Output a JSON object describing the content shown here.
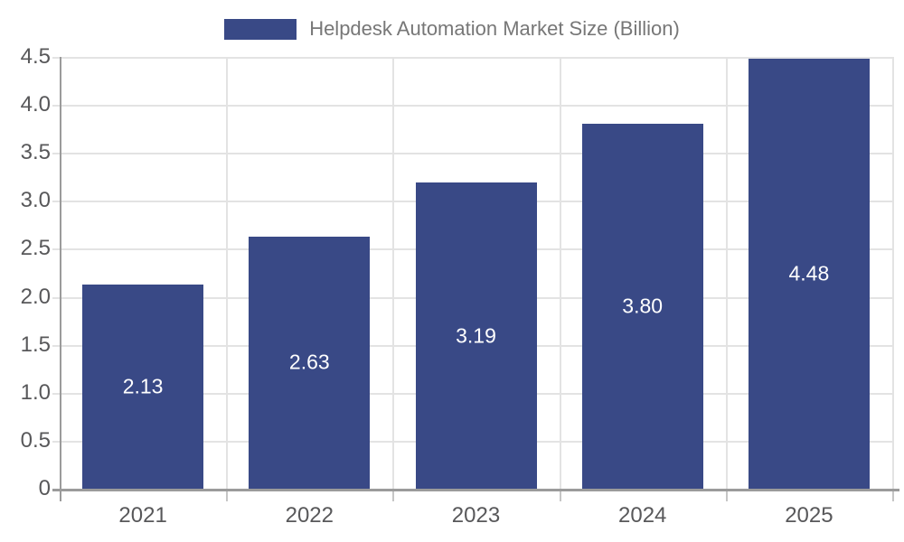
{
  "chart_data": {
    "type": "bar",
    "title": "Helpdesk Automation Market Size (Billion)",
    "categories": [
      "2021",
      "2022",
      "2023",
      "2024",
      "2025"
    ],
    "values": [
      2.13,
      2.63,
      3.19,
      3.8,
      4.48
    ],
    "value_labels": [
      "2.13",
      "2.63",
      "3.19",
      "3.80",
      "4.48"
    ],
    "xlabel": "",
    "ylabel": "",
    "ylim": [
      0,
      4.5
    ],
    "ytick_step": 0.5,
    "ytick_labels": [
      "0",
      "0.5",
      "1.0",
      "1.5",
      "2.0",
      "2.5",
      "3.0",
      "3.5",
      "4.0",
      "4.5"
    ],
    "grid": "on",
    "legend_position": "top-center"
  },
  "colors": {
    "bar": "#394986",
    "grid": "#e3e3e3",
    "axis": "#9b9b9b",
    "tick_label": "#58585a",
    "legend_text": "#777777",
    "value_label": "#ffffff",
    "background": "#ffffff"
  }
}
